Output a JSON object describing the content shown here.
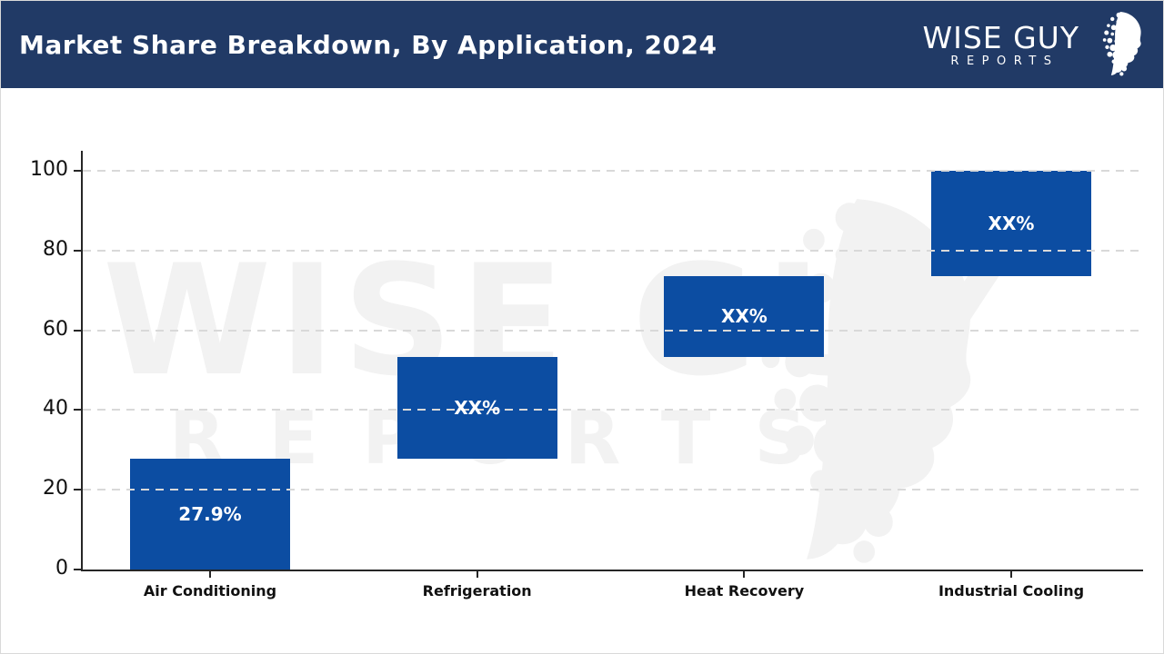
{
  "header": {
    "title": "Market Share Breakdown, By Application, 2024",
    "bg_color": "#213a66",
    "logo": {
      "brand_line1": "WISE GUY",
      "brand_line2": "REPORTS"
    }
  },
  "watermark": {
    "line1": "WISE GUY",
    "line2": "REPORTS"
  },
  "chart_data": {
    "type": "bar",
    "subtype": "floating-waterfall",
    "title": "Market Share Breakdown, By Application, 2024",
    "categories": [
      "Air Conditioning",
      "Refrigeration",
      "Heat Recovery",
      "Industrial Cooling"
    ],
    "series": [
      {
        "name": "Market share (%)",
        "segments": [
          {
            "category": "Air Conditioning",
            "start": 0,
            "end": 27.9,
            "label": "27.9%"
          },
          {
            "category": "Refrigeration",
            "start": 27.9,
            "end": 53.3,
            "label": "XX%"
          },
          {
            "category": "Heat Recovery",
            "start": 53.3,
            "end": 73.6,
            "label": "XX%"
          },
          {
            "category": "Industrial Cooling",
            "start": 73.6,
            "end": 100,
            "label": "XX%"
          }
        ]
      }
    ],
    "xlabel": "",
    "ylabel": "",
    "ylim": [
      0,
      100
    ],
    "yticks": [
      0,
      20,
      40,
      60,
      80,
      100
    ],
    "grid": "horizontal-dashed",
    "legend": "none",
    "bar_color": "#0c4da2",
    "bar_label_color": "#ffffff",
    "axis_color": "#262626",
    "grid_color": "#d9d9d9"
  }
}
